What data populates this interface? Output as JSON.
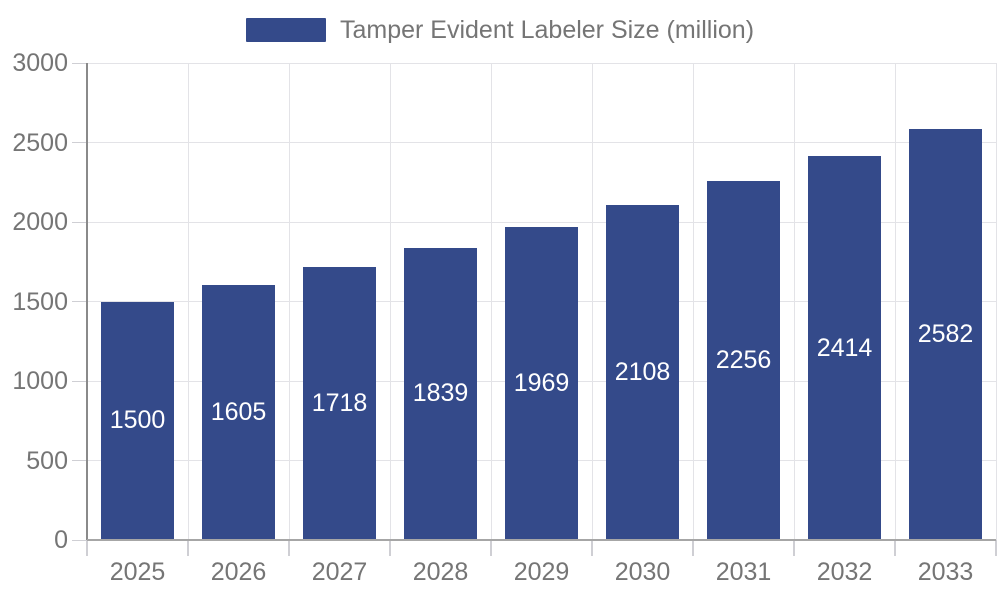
{
  "chart_data": {
    "type": "bar",
    "title": "Tamper Evident Labeler Size (million)",
    "legend_entries": [
      "Tamper Evident Labeler Size (million)"
    ],
    "legend_position": "top-center",
    "categories": [
      "2025",
      "2026",
      "2027",
      "2028",
      "2029",
      "2030",
      "2031",
      "2032",
      "2033"
    ],
    "values": [
      1500,
      1605,
      1718,
      1839,
      1969,
      2108,
      2256,
      2414,
      2582
    ],
    "xlabel": "",
    "ylabel": "",
    "ylim": [
      0,
      3000
    ],
    "yticks": [
      0,
      500,
      1000,
      1500,
      2000,
      2500,
      3000
    ],
    "grid": true,
    "bar_labels_visible": true,
    "colors": {
      "bar": "#344A8A",
      "bar_label": "#FFFFFF",
      "axis_text": "#757575",
      "legend_text": "#757575",
      "gridline": "#E3E3E7",
      "axis_line": "#A6A6A6",
      "spine": "#8A8A8A",
      "tick": "#CFCFD4",
      "background": "#FFFFFF"
    }
  }
}
